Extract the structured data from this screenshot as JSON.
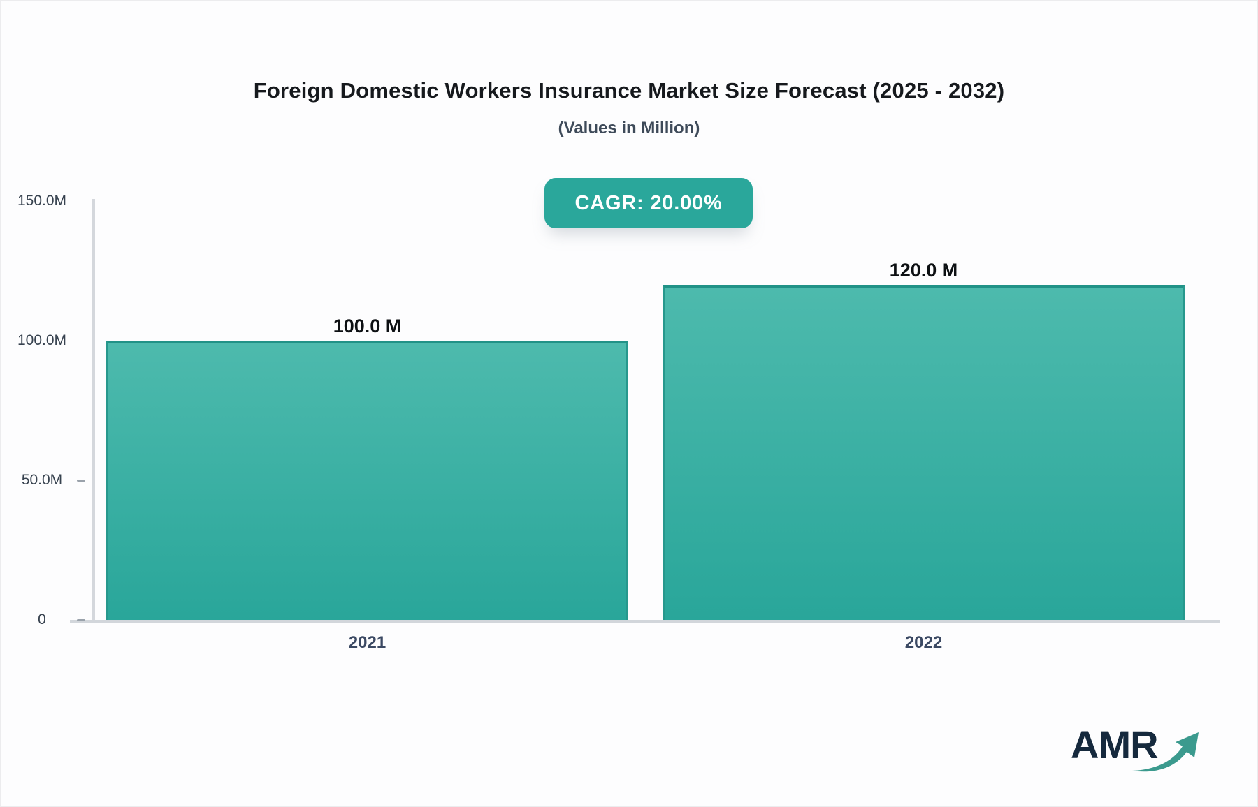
{
  "header": {
    "title": "Foreign Domestic Workers Insurance Market Size Forecast (2025 - 2032)",
    "subtitle": "(Values in Million)",
    "cagr_label": "CAGR: 20.00%"
  },
  "chart_data": {
    "type": "bar",
    "title": "Foreign Domestic Workers Insurance Market Size Forecast (2025 - 2032)",
    "subtitle": "(Values in Million)",
    "unit": "Million",
    "categories": [
      "2021",
      "2022"
    ],
    "values": [
      100.0,
      120.0
    ],
    "value_labels": [
      "100.0 M",
      "120.0 M"
    ],
    "cagr_percent": "20.00%",
    "xlabel": "",
    "ylabel": "",
    "ylim": [
      0,
      150
    ],
    "grid": false,
    "legend": false,
    "yticks": [
      {
        "value": 150,
        "label": "150.0M",
        "dash": false
      },
      {
        "value": 100,
        "label": "100.0M",
        "dash": false
      },
      {
        "value": 50,
        "label": "50.0M",
        "dash": true
      },
      {
        "value": 0,
        "label": "0",
        "dash": true
      }
    ]
  },
  "branding": {
    "logo_text": "AMR"
  },
  "colors": {
    "accent": "#2aa79b",
    "bar_top": "#4dbaad",
    "bar_bottom": "#29a69a",
    "bar_border": "#27988d",
    "axis": "#d3d6db",
    "tick_label": "#37424f",
    "x_label": "#3b4963",
    "title": "#16191d",
    "logo_text": "#15293d",
    "logo_arrow": "#3b9a8e"
  }
}
